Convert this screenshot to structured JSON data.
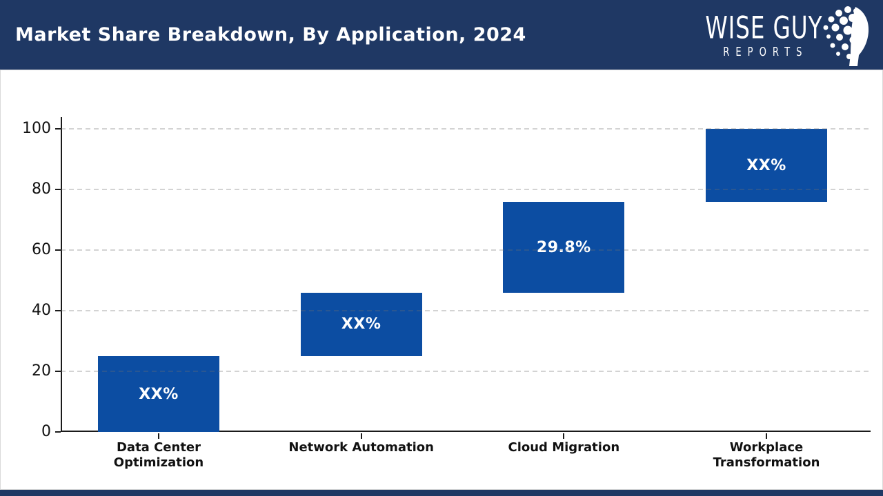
{
  "header": {
    "title": "Market Share Breakdown, By Application, 2024",
    "bg_color": "#1f3864",
    "logo": {
      "name": "WISE GUY",
      "sub": "REPORTS"
    }
  },
  "watermark": {
    "big": "WISE GUY",
    "sub": "REPORTS"
  },
  "chart_data": {
    "type": "bar",
    "subtype": "floating-segment-waterfall",
    "title": "Market Share Breakdown, By Application, 2024",
    "categories": [
      "Data Center Optimization",
      "Network Automation",
      "Cloud Migration",
      "Workplace Transformation"
    ],
    "category_lines": [
      [
        "Data Center",
        "Optimization"
      ],
      [
        "Network Automation"
      ],
      [
        "Cloud Migration"
      ],
      [
        "Workplace",
        "Transformation"
      ]
    ],
    "bars": [
      {
        "category": "Data Center Optimization",
        "start": 0,
        "end": 25,
        "label": "XX%"
      },
      {
        "category": "Network Automation",
        "start": 25,
        "end": 46,
        "label": "XX%"
      },
      {
        "category": "Cloud Migration",
        "start": 46,
        "end": 75.8,
        "label": "29.8%"
      },
      {
        "category": "Workplace Transformation",
        "start": 75.8,
        "end": 100,
        "label": "XX%"
      }
    ],
    "ylim": [
      0,
      100
    ],
    "yticks": [
      0,
      20,
      40,
      60,
      80,
      100
    ],
    "xlabel": "",
    "ylabel": "",
    "grid": "horizontal-dashed",
    "legend": "none",
    "bar_color": "#0c4da2",
    "bar_label_color": "#ffffff",
    "axis_color": "#1a1a1a"
  },
  "footer": {
    "bg_color": "#1f3864"
  }
}
